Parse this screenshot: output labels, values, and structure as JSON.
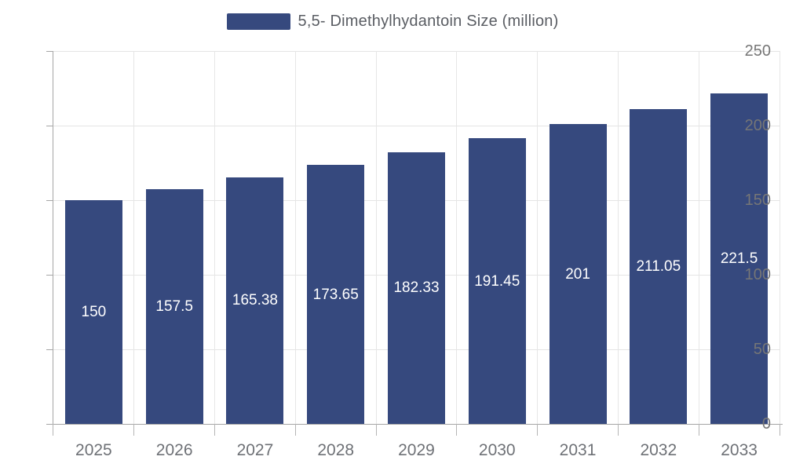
{
  "legend": {
    "label": "5,5- Dimethylhydantoin Size (million)",
    "swatch_color": "#36497e"
  },
  "chart_data": {
    "type": "bar",
    "title": "5,5- Dimethylhydantoin Size (million)",
    "series_name": "5,5- Dimethylhydantoin Size (million)",
    "categories": [
      "2025",
      "2026",
      "2027",
      "2028",
      "2029",
      "2030",
      "2031",
      "2032",
      "2033"
    ],
    "values": [
      150,
      157.5,
      165.38,
      173.65,
      182.33,
      191.45,
      201,
      211.05,
      221.5
    ],
    "value_labels": [
      "150",
      "157.5",
      "165.38",
      "173.65",
      "182.33",
      "191.45",
      "201",
      "211.05",
      "221.5"
    ],
    "xlabel": "",
    "ylabel": "",
    "ylim": [
      0,
      250
    ],
    "yticks": [
      0,
      50,
      100,
      150,
      200,
      250
    ],
    "grid": true,
    "legend_position": "top",
    "bar_color": "#36497e",
    "bar_label_color": "#ffffff",
    "bar_label_position": "inside-center"
  },
  "colors": {
    "background": "#ffffff",
    "grid_line": "#e5e5e5",
    "axis_line": "#a6a6a6",
    "axis_tick_text": "#747474",
    "legend_text": "#5a5d63"
  }
}
